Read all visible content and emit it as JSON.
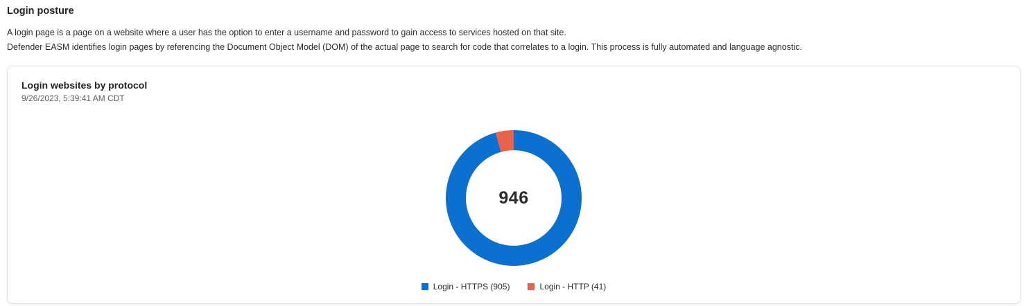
{
  "page": {
    "title": "Login posture",
    "description_1": "A login page is a page on a website where a user has the option to enter a username and password to gain access to services hosted on that site.",
    "description_2": "Defender EASM identifies login pages by referencing the Document Object Model (DOM) of the actual page to search for code that correlates to a login. This process is fully automated and language agnostic."
  },
  "card": {
    "title": "Login websites by protocol",
    "timestamp": "9/26/2023, 5:39:41 AM CDT"
  },
  "chart_data": {
    "type": "pie",
    "subtype": "donut",
    "title": "Login websites by protocol",
    "timestamp": "9/26/2023, 5:39:41 AM CDT",
    "center_total": "946",
    "start_angle_deg": 0,
    "direction": "clockwise",
    "legend_position": "bottom",
    "slices": [
      {
        "label": "Login - HTTPS",
        "value": 905,
        "color": "#0b70d0",
        "legend_label": "Login - HTTPS (905)"
      },
      {
        "label": "Login - HTTP",
        "value": 41,
        "color": "#e8624d",
        "legend_label": "Login - HTTP (41)"
      }
    ]
  }
}
